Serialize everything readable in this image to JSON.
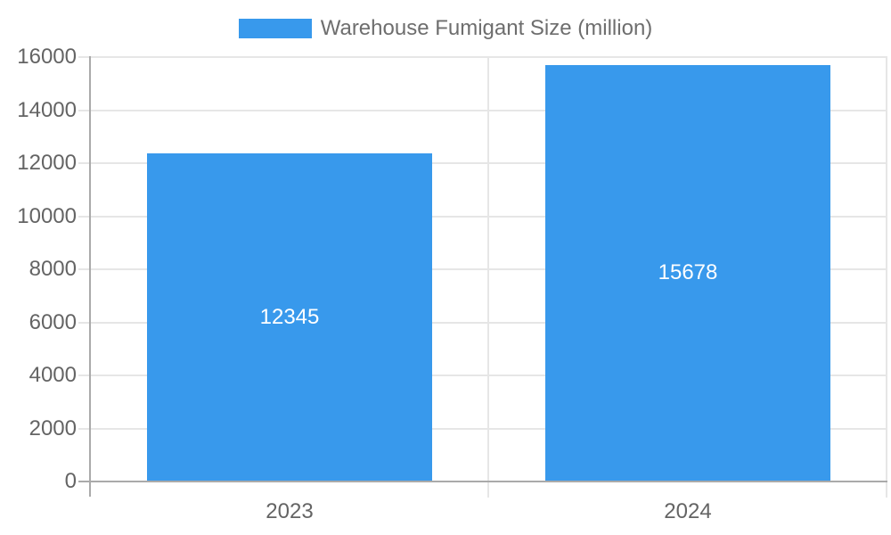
{
  "chart_data": {
    "type": "bar",
    "title": "Warehouse Fumigant Size (million)",
    "categories": [
      "2023",
      "2024"
    ],
    "values": [
      12345,
      15678
    ],
    "data_labels": [
      "12345",
      "15678"
    ],
    "xlabel": "",
    "ylabel": "",
    "ylim": [
      0,
      16000
    ],
    "ytick_step": 2000,
    "ytick_labels": [
      "0",
      "2000",
      "4000",
      "6000",
      "8000",
      "10000",
      "12000",
      "14000",
      "16000"
    ],
    "grid": true,
    "legend_position": "top",
    "colors": {
      "bar": "#3899ec",
      "grid": "#e6e6e6",
      "axis": "#aaaaaa",
      "axis_label": "#646464",
      "legend_text": "#6e6e6e",
      "bar_label": "#ffffff",
      "background": "#ffffff"
    }
  }
}
